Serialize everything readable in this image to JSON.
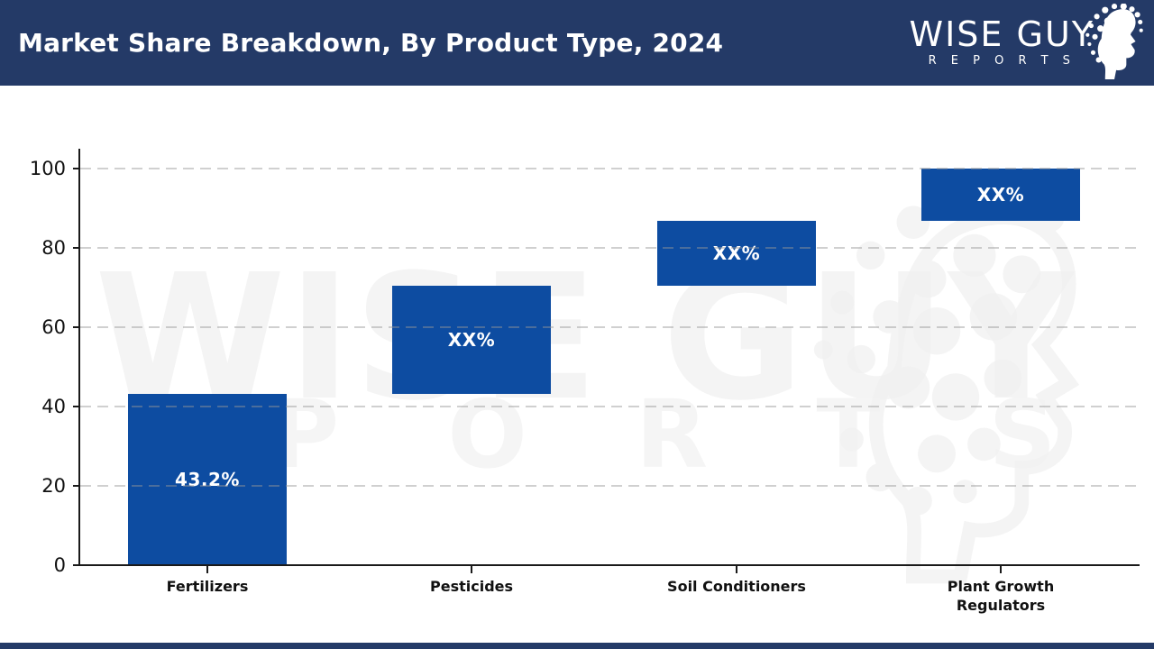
{
  "header": {
    "title": "Market Share Breakdown, By Product Type, 2024",
    "logo": {
      "line1": "WISE GUY",
      "line2": "R E P O R T S"
    },
    "background": "#243A67"
  },
  "watermark": {
    "line1": "WISE GUY",
    "line2": "P O R T S"
  },
  "chart_data": {
    "type": "bar",
    "subtype": "waterfall",
    "title": "Market Share Breakdown, By Product Type, 2024",
    "categories": [
      "Fertilizers",
      "Pesticides",
      "Soil Conditioners",
      "Plant Growth\nRegulators"
    ],
    "bars": [
      {
        "category": "Fertilizers",
        "start": 0,
        "end": 43.2,
        "label": "43.2%"
      },
      {
        "category": "Pesticides",
        "start": 43.2,
        "end": 70.5,
        "label": "XX%"
      },
      {
        "category": "Soil Conditioners",
        "start": 70.5,
        "end": 86.8,
        "label": "XX%"
      },
      {
        "category": "Plant Growth Regulators",
        "start": 86.8,
        "end": 100,
        "label": "XX%"
      }
    ],
    "ylim": [
      0,
      100
    ],
    "yticks": [
      0,
      20,
      40,
      60,
      80,
      100
    ],
    "grid": "dashed horizontal, drawn above bars",
    "legend": "none",
    "bar_color": "#0D4CA1",
    "bar_label_color": "#FFFFFF",
    "axis_color": "#1a1a1a"
  }
}
